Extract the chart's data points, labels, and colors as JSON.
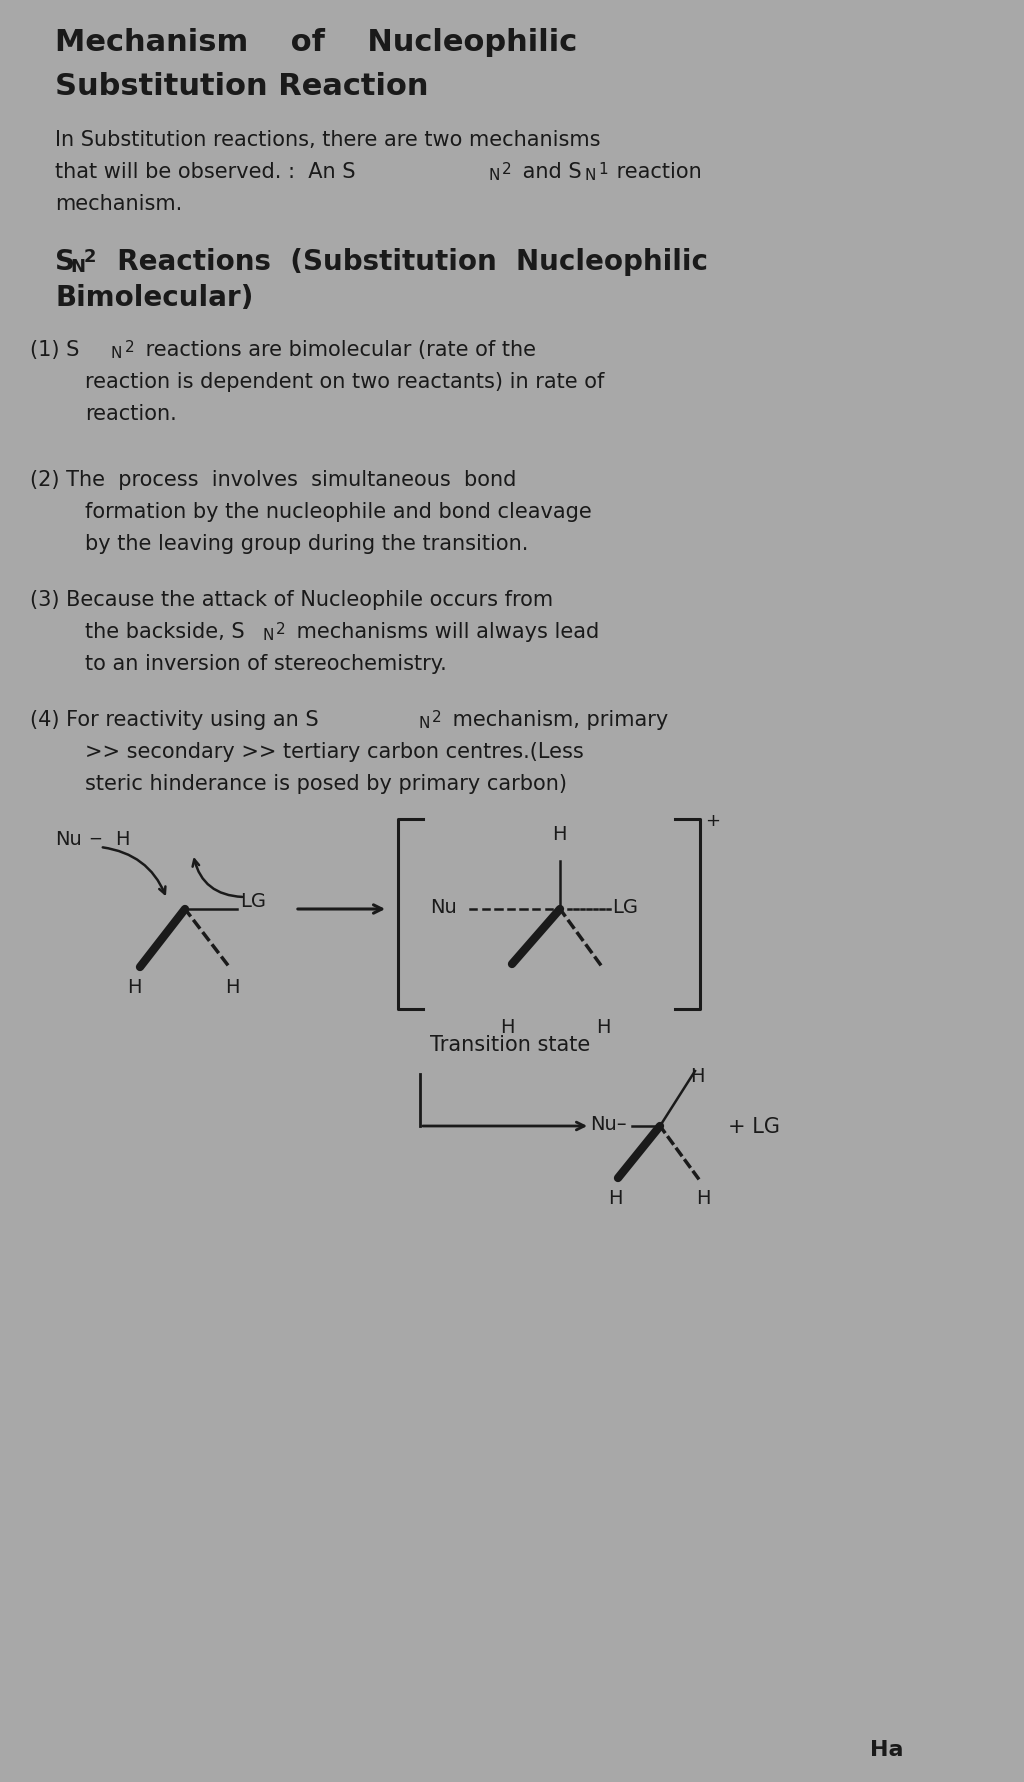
{
  "bg_color": "#a8a8a8",
  "text_color": "#1a1a1a",
  "title_line1": "Mechanism    of    Nucleophilic",
  "title_line2": "Substitution Reaction",
  "footer": "Ha",
  "transition_label": "Transition state"
}
